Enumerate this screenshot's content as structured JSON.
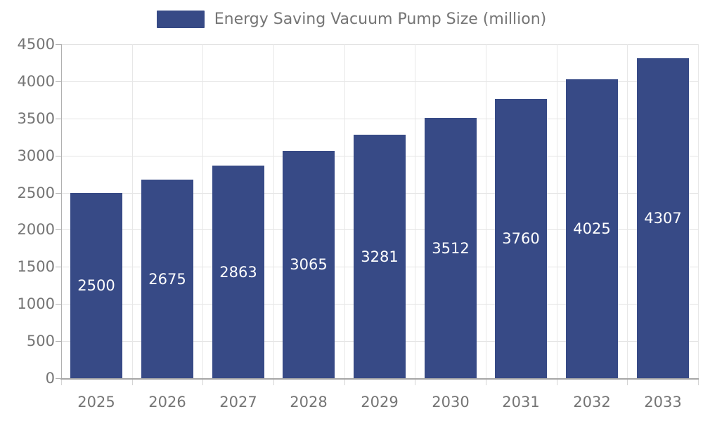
{
  "chart_data": {
    "type": "bar",
    "title": "Energy Saving Vacuum Pump Size (million)",
    "categories": [
      "2025",
      "2026",
      "2027",
      "2028",
      "2029",
      "2030",
      "2031",
      "2032",
      "2033"
    ],
    "values": [
      2500,
      2675,
      2863,
      3065,
      3281,
      3512,
      3760,
      4025,
      4307
    ],
    "xlabel": "",
    "ylabel": "",
    "ylim": [
      0,
      4500
    ],
    "ytick_step": 500,
    "grid": true,
    "legend_position": "top-center",
    "colors": {
      "bar": "#374a86",
      "bar_label": "#ffffff",
      "axis_text": "#757575",
      "axis_line": "#a6a6a6",
      "gridline": "#e3e3e3"
    }
  }
}
